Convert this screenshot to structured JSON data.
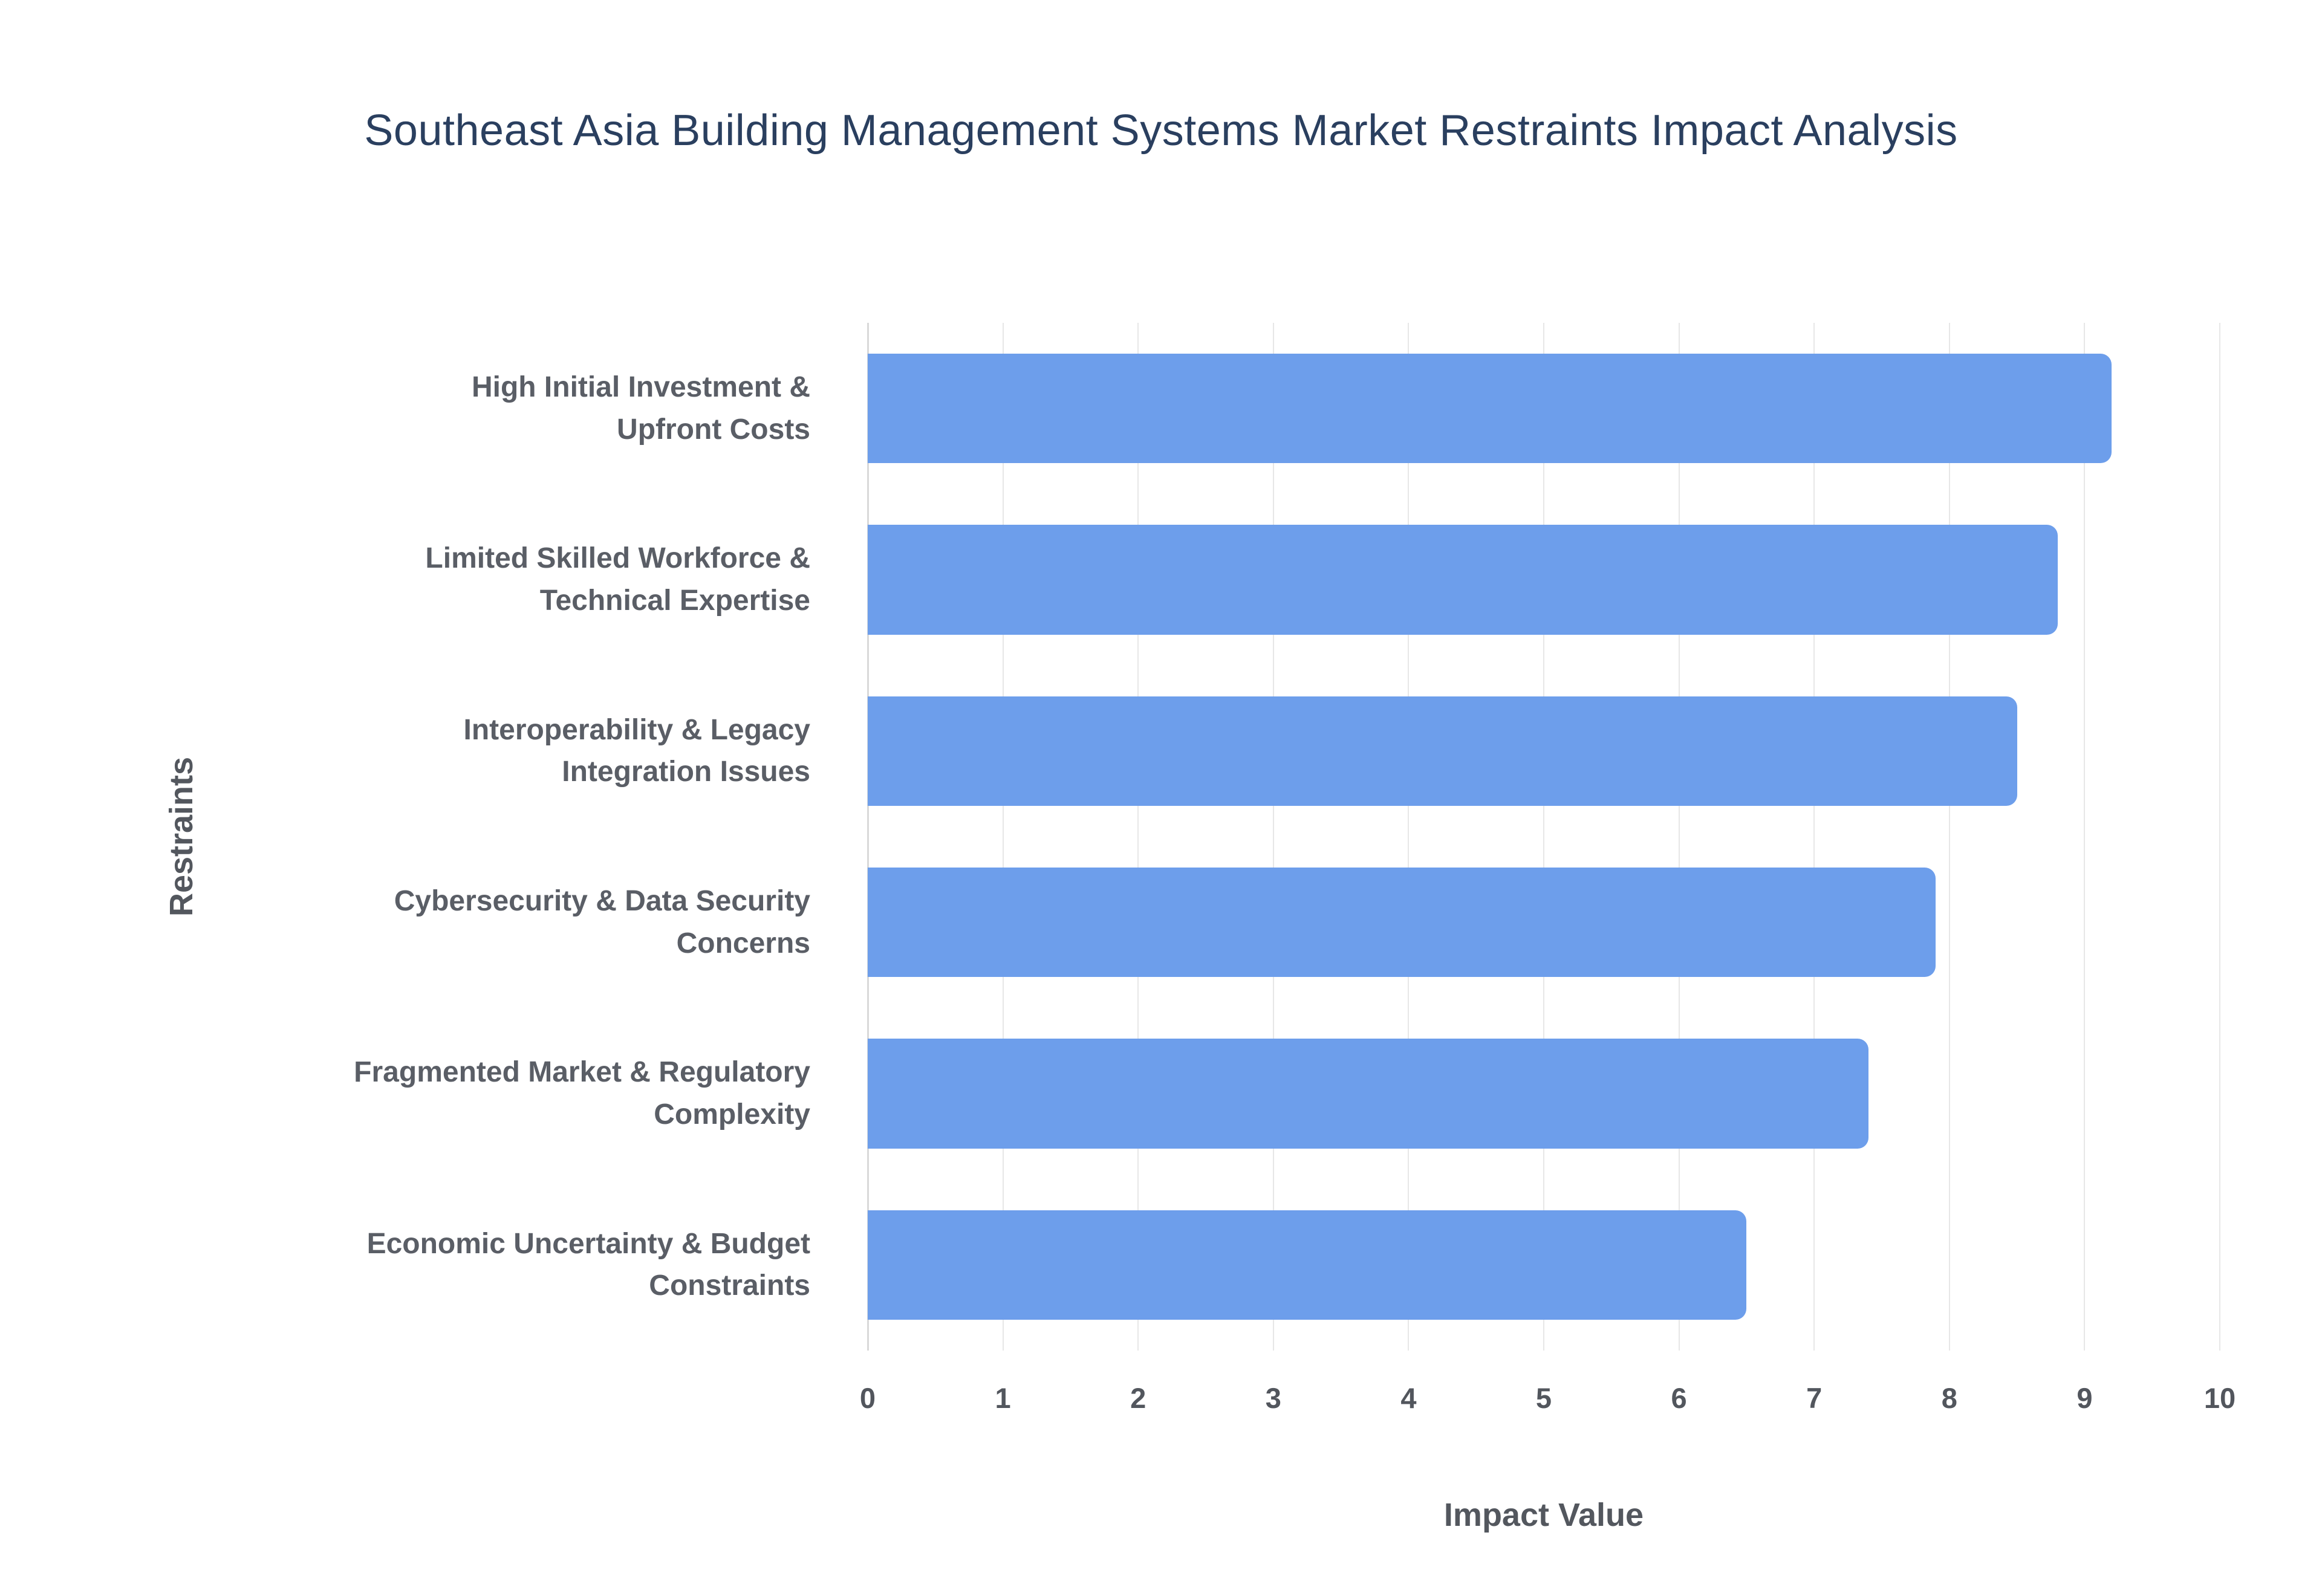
{
  "chart_data": {
    "type": "bar",
    "orientation": "horizontal",
    "title": "Southeast Asia Building Management Systems Market Restraints Impact Analysis",
    "xlabel": "Impact Value",
    "ylabel": "Restraints",
    "categories": [
      "High Initial Investment &\nUpfront Costs",
      "Limited Skilled Workforce &\nTechnical Expertise",
      "Interoperability & Legacy\nIntegration Issues",
      "Cybersecurity & Data Security\nConcerns",
      "Fragmented Market & Regulatory\nComplexity",
      "Economic Uncertainty & Budget\nConstraints"
    ],
    "values": [
      9.2,
      8.8,
      8.5,
      7.9,
      7.4,
      6.5
    ],
    "xlim": [
      0,
      10
    ],
    "xticks": [
      0,
      1,
      2,
      3,
      4,
      5,
      6,
      7,
      8,
      9,
      10
    ],
    "grid": true,
    "legend": "none",
    "bar_color": "#6d9eeb",
    "background_color": "#ffffff",
    "title_color": "#2a3f5f",
    "axis_text_color": "#53575e"
  }
}
